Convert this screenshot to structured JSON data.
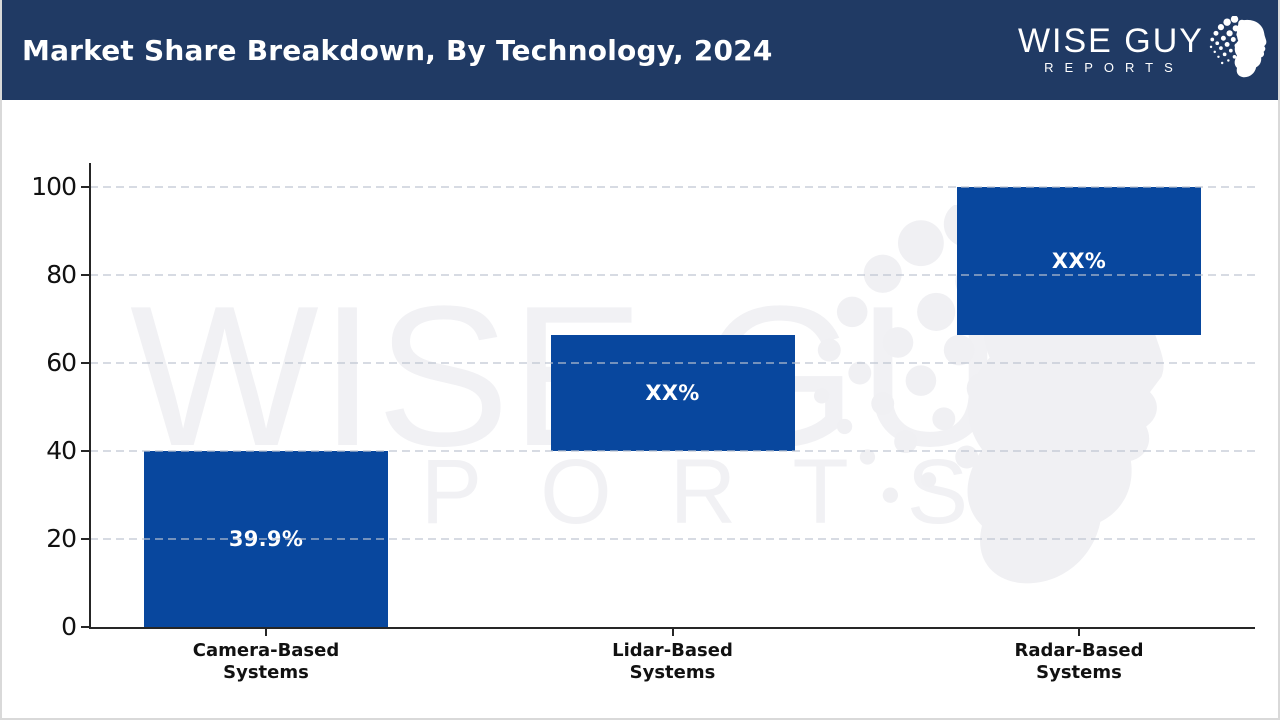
{
  "header": {
    "title": "Market Share Breakdown, By Technology, 2024"
  },
  "logo": {
    "line1": "WISE GUY",
    "line2": "REPORTS"
  },
  "watermark": {
    "line1": "WISE GUY",
    "line2": "REPORTS"
  },
  "chart_data": {
    "type": "bar",
    "subtype": "waterfall-stacked",
    "title": "Market Share Breakdown, By Technology, 2024",
    "categories": [
      "Camera-Based\nSystems",
      "Lidar-Based\nSystems",
      "Radar-Based\nSystems"
    ],
    "segments": [
      {
        "start": 0,
        "end": 39.9
      },
      {
        "start": 39.9,
        "end": 66.3
      },
      {
        "start": 66.3,
        "end": 100
      }
    ],
    "values": [
      39.9,
      26.4,
      33.7
    ],
    "bar_labels": [
      "39.9%",
      "XX%",
      "XX%"
    ],
    "xlabel": "",
    "ylabel": "",
    "ylim": [
      0,
      100
    ],
    "yticks": [
      0,
      20,
      40,
      60,
      80,
      100
    ],
    "grid": true,
    "grid_style": "dashed",
    "legend": false,
    "bar_color": "#08479e",
    "bar_label_color": "#ffffff",
    "axis_color": "#262626",
    "header_color": "#203a64"
  }
}
